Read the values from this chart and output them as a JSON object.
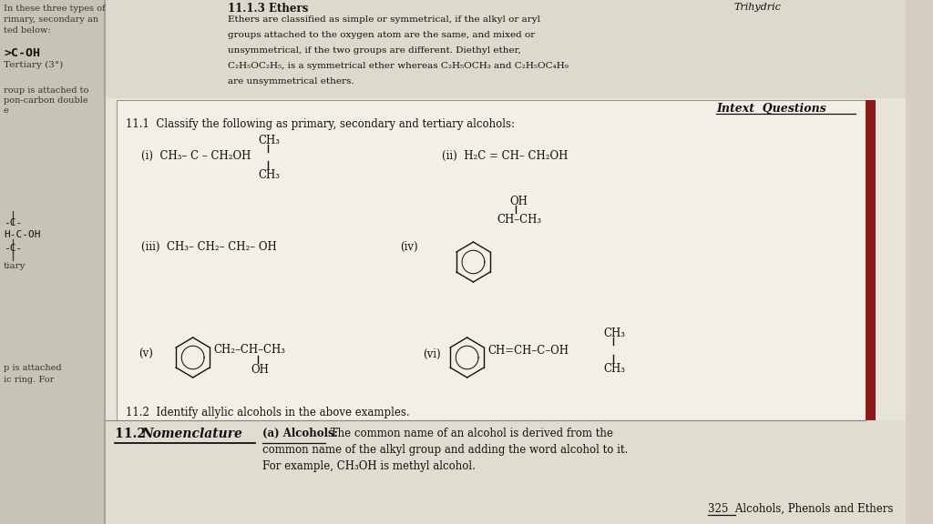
{
  "bg_color": "#d4cfc0",
  "left_col_bg": "#c8c4b5",
  "main_bg": "#e8e4d8",
  "top_bg": "#ddd9cc",
  "box_bg": "#f2efe6",
  "box_border": "#999990",
  "red_stripe_color": "#8b1a1a",
  "bot_bg": "#e0dcd0",
  "text_color": "#111111",
  "top_header": "11.1.3 Ethers",
  "top_right_label": "Trihydric",
  "top_paragraph_line1": "Ethers are classified as simple or symmetrical, if the alkyl or aryl",
  "top_paragraph_line2": "groups attached to the oxygen atom are the same, and mixed or",
  "top_paragraph_line3": "unsymmetrical, if the two groups are different. Diethyl ether,",
  "top_paragraph_line4": "C₂H₅OC₂H₅, is a symmetrical ether whereas C₂H₅OCH₃ and C₂H₅OC₄H₉",
  "top_paragraph_line5": "are unsymmetrical ethers.",
  "intext_label": "Intext  Questions",
  "q11_1": "11.1  Classify the following as primary, secondary and tertiary alcohols:",
  "q11_2": "11.2  Identify allylic alcohols in the above examples.",
  "sec_label1": "11.2 ",
  "sec_label2": "Nomenclature",
  "alc_bold": "(a) Alcohols:",
  "alc_text1": " The common name of an alcohol is derived from the",
  "alc_text2": "common name of the alkyl group and adding the word alcohol to it.",
  "alc_text3": "For example, CH₃OH is methyl alcohol.",
  "page_number": "325  Alcohols, Phenols and Ethers",
  "left_lines": [
    "In these three types of",
    "rimary, secondary an",
    "ted below:"
  ],
  "left_lines2": [
    "roup is attached to",
    "pon-carbon double",
    "e"
  ],
  "left_lines3": [
    "-C-",
    "H-C-OH",
    "-C-",
    "tiary"
  ],
  "left_lines4": [
    "p is attached",
    "ic ring. For"
  ]
}
